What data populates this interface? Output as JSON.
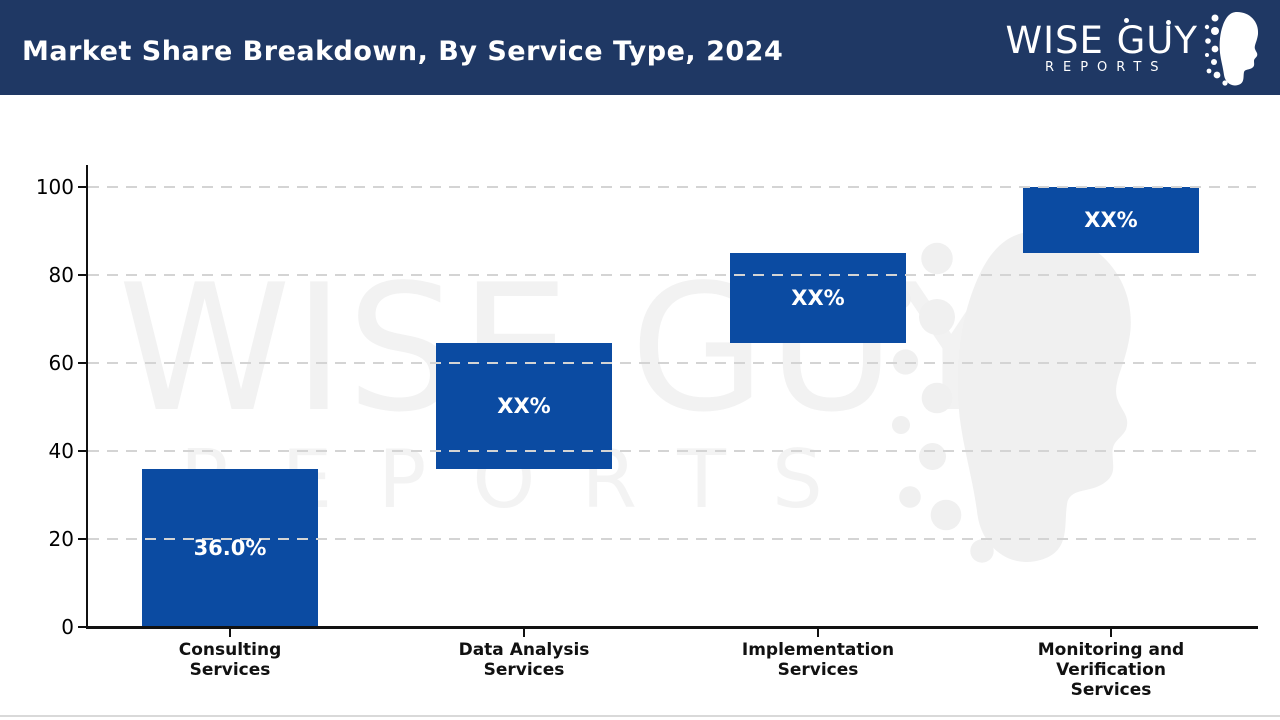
{
  "header": {
    "title": "Market Share Breakdown, By Service Type, 2024",
    "logo": {
      "line1": "WISE GUY",
      "line2": "REPORTS"
    }
  },
  "watermark": {
    "line1": "WISE GUY",
    "line2": "REPORTS"
  },
  "colors": {
    "header_bg": "#1f3864",
    "bar": "#0b4ba2",
    "bar_label": "#ffffff",
    "grid": "#d4d4d4",
    "axis": "#111111",
    "watermark": "#f2f2f2",
    "background": "#ffffff",
    "title_text": "#ffffff"
  },
  "chart_data": {
    "type": "bar",
    "subtype": "waterfall",
    "title": "Market Share Breakdown, By Service Type, 2024",
    "categories": [
      "Consulting\nServices",
      "Data Analysis\nServices",
      "Implementation\nServices",
      "Monitoring and\nVerification\nServices"
    ],
    "values": [
      36.0,
      28.5,
      20.5,
      15.0
    ],
    "cumulative": [
      [
        0,
        36.0
      ],
      [
        36.0,
        64.5
      ],
      [
        64.5,
        85.0
      ],
      [
        85.0,
        100.0
      ]
    ],
    "value_labels": [
      "36.0%",
      "XX%",
      "XX%",
      "XX%"
    ],
    "xlabel": "",
    "ylabel": "",
    "yticks": [
      0,
      20,
      40,
      60,
      80,
      100
    ],
    "ylim": [
      0,
      105
    ],
    "grid": "horizontal dashed, drawn over bars",
    "legend": "none"
  }
}
